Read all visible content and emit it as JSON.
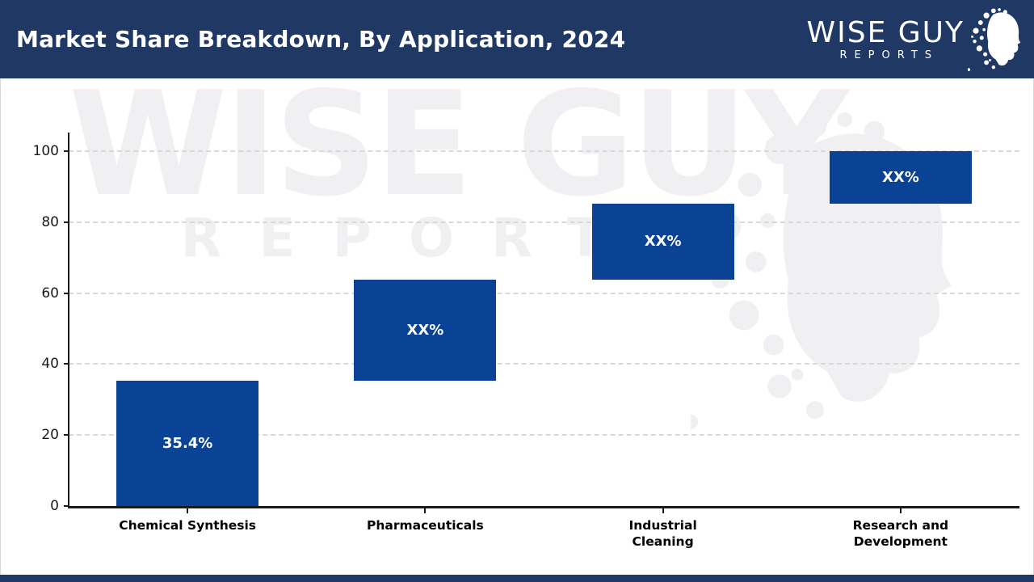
{
  "header": {
    "title": "Market Share Breakdown, By Application, 2024",
    "logo_line1": "WISE GUY",
    "logo_line2": "REPORTS"
  },
  "watermark": {
    "line1": "WISE GUY",
    "line2": "REPORTS"
  },
  "colors": {
    "header_bg": "#1f3864",
    "footer_bg": "#1f3864",
    "bar": "#0a4296",
    "bar_label": "#ffffff",
    "grid": "#d9d9d9",
    "axis": "#1a1a1a"
  },
  "chart_data": {
    "type": "bar",
    "subtype": "waterfall-stacked-segments",
    "title": "Market Share Breakdown, By Application, 2024",
    "categories": [
      "Chemical Synthesis",
      "Pharmaceuticals",
      "Industrial Cleaning",
      "Research and Development"
    ],
    "category_label_lines": [
      [
        "Chemical Synthesis"
      ],
      [
        "Pharmaceuticals"
      ],
      [
        "Industrial",
        "Cleaning"
      ],
      [
        "Research and",
        "Development"
      ]
    ],
    "segments": [
      {
        "category": "Chemical Synthesis",
        "start": 0,
        "end": 35.4,
        "label": "35.4%"
      },
      {
        "category": "Pharmaceuticals",
        "start": 35.4,
        "end": 63.8,
        "label": "XX%"
      },
      {
        "category": "Industrial Cleaning",
        "start": 63.8,
        "end": 85.2,
        "label": "XX%"
      },
      {
        "category": "Research and Development",
        "start": 85.2,
        "end": 100,
        "label": "XX%"
      }
    ],
    "ylim": [
      0,
      100
    ],
    "yticks": [
      0,
      20,
      40,
      60,
      80,
      100
    ],
    "xlabel": "",
    "ylabel": "",
    "grid": "horizontal-dashed",
    "legend": "none"
  }
}
